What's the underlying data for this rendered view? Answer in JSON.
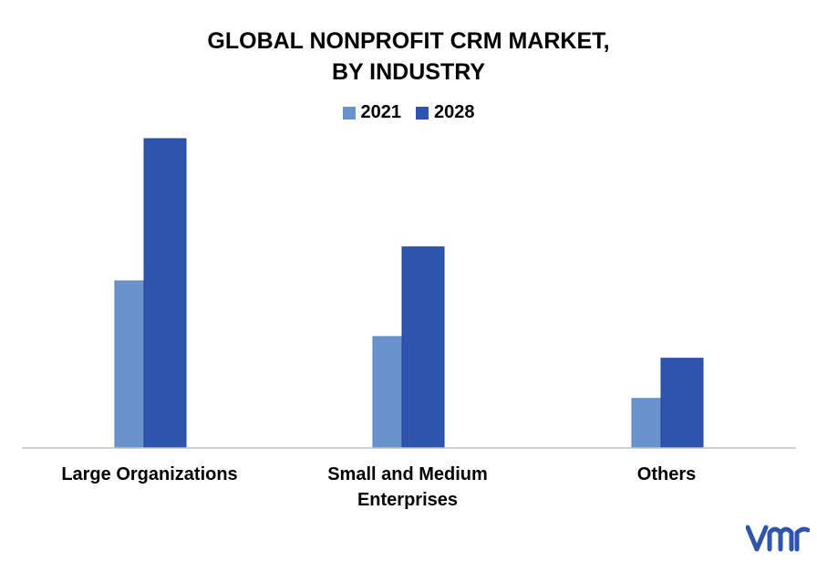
{
  "chart_data": {
    "type": "bar",
    "title_lines": [
      "GLOBAL NONPROFIT CRM MARKET,",
      "BY INDUSTRY"
    ],
    "categories": [
      [
        "Large Organizations"
      ],
      [
        "Small and Medium",
        "Enterprises"
      ],
      [
        "Others"
      ]
    ],
    "series": [
      {
        "name": "2021",
        "color": "#6A92CC",
        "values": [
          5.4,
          3.6,
          1.6
        ]
      },
      {
        "name": "2028",
        "color": "#2E54AE",
        "values": [
          10.0,
          6.5,
          2.9
        ]
      }
    ],
    "ylim": [
      0,
      10
    ],
    "grid": false,
    "legend_position": "top-center"
  },
  "logo": {
    "name": "vmr-logo",
    "color": "#2E54AE"
  }
}
